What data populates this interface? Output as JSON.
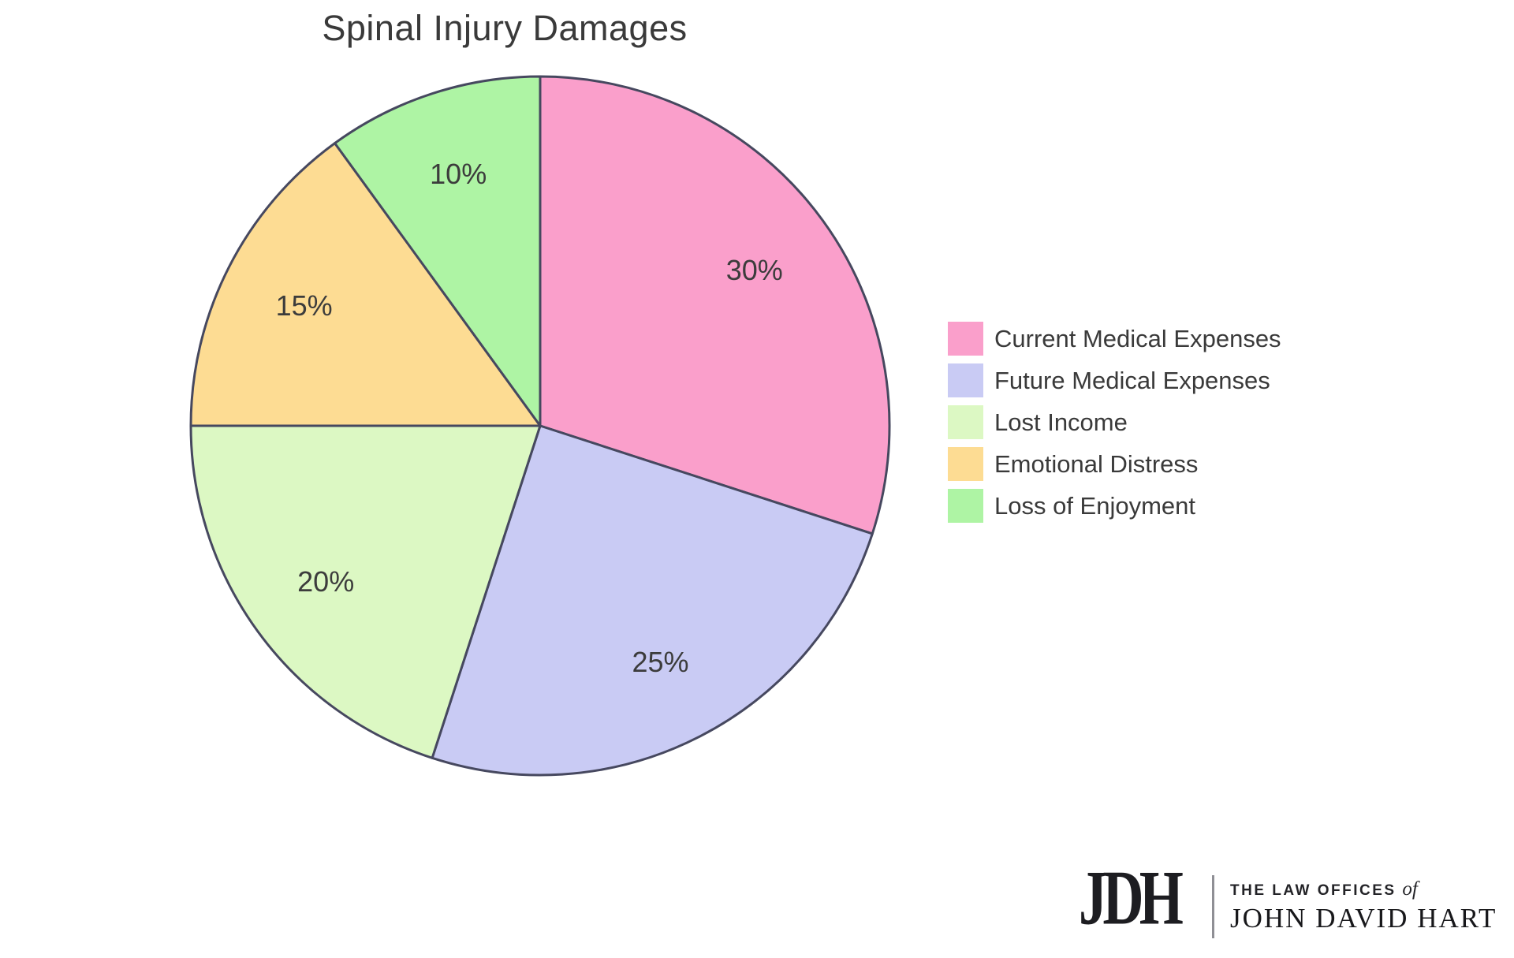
{
  "title": "Spinal Injury Damages",
  "chart_data": {
    "type": "pie",
    "title": "Spinal Injury Damages",
    "unit": "percent",
    "direction": "clockwise",
    "start_angle": "12-o-clock",
    "legend_position": "right",
    "grid": false,
    "stroke_color": "#46485f",
    "label_color": "#3c3c3c",
    "slices": [
      {
        "label": "Current Medical Expenses",
        "value": 30,
        "display": "30%",
        "color": "#fa9fcb"
      },
      {
        "label": "Future Medical Expenses",
        "value": 25,
        "display": "25%",
        "color": "#c9cbf4"
      },
      {
        "label": "Lost Income",
        "value": 20,
        "display": "20%",
        "color": "#dcf8c3"
      },
      {
        "label": "Emotional Distress",
        "value": 15,
        "display": "15%",
        "color": "#fddc93"
      },
      {
        "label": "Loss of Enjoyment",
        "value": 10,
        "display": "10%",
        "color": "#aef4a4"
      }
    ]
  },
  "logo": {
    "monogram": "JDH",
    "tagline_caps": "THE LAW OFFICES",
    "tagline_italic": "of",
    "firm_name": "JOHN DAVID HART"
  }
}
